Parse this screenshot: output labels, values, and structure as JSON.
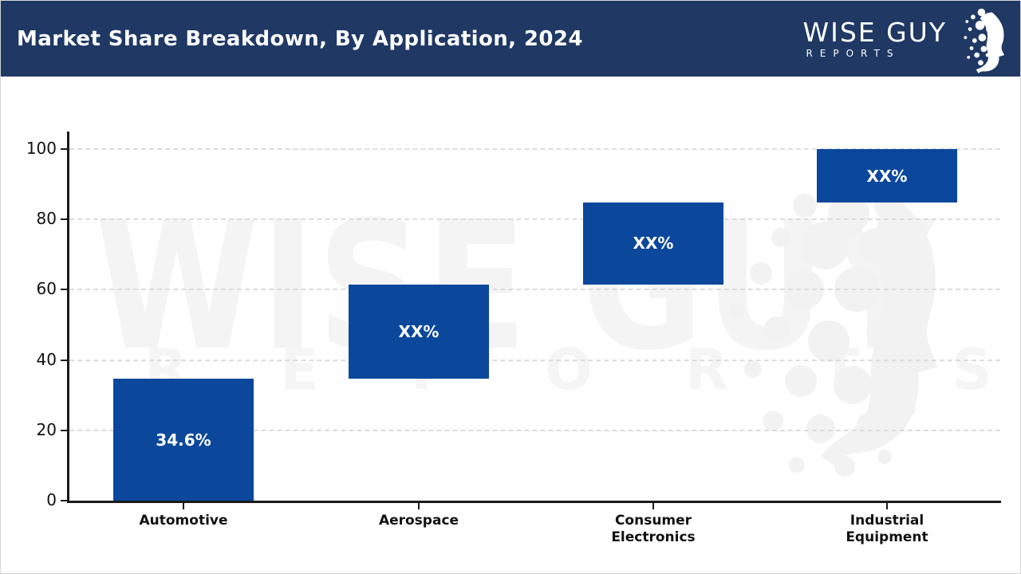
{
  "header": {
    "title": "Market Share Breakdown, By Application, 2024",
    "logo": {
      "name_line": "WISE GUY",
      "reports_line": "REPORTS"
    }
  },
  "watermark": {
    "name_line": "WISE GUY",
    "reports_line": "R E P O R T S"
  },
  "chart_data": {
    "type": "bar",
    "subtype": "floating-waterfall",
    "title": "Market Share Breakdown, By Application, 2024",
    "xlabel": "",
    "ylabel": "",
    "ylim": [
      0,
      100
    ],
    "yticks": [
      0,
      20,
      40,
      60,
      80,
      100
    ],
    "grid": "horizontal-dashed",
    "legend": "none",
    "categories": [
      "Automotive",
      "Aerospace",
      "Consumer Electronics",
      "Industrial Equipment"
    ],
    "segments": [
      {
        "category": "Automotive",
        "start": 0,
        "end": 34.6,
        "label": "34.6%"
      },
      {
        "category": "Aerospace",
        "start": 34.6,
        "end": 61.5,
        "label": "XX%"
      },
      {
        "category": "Consumer Electronics",
        "start": 61.5,
        "end": 84.8,
        "label": "XX%"
      },
      {
        "category": "Industrial Equipment",
        "start": 84.8,
        "end": 100,
        "label": "XX%"
      }
    ]
  },
  "colors": {
    "header_bg": "#1f3864",
    "bar": "#0b489c",
    "grid": "#dcdcdc",
    "axis": "#1a1a1a",
    "watermark": "#f4f4f4",
    "bar_label": "#ffffff"
  }
}
